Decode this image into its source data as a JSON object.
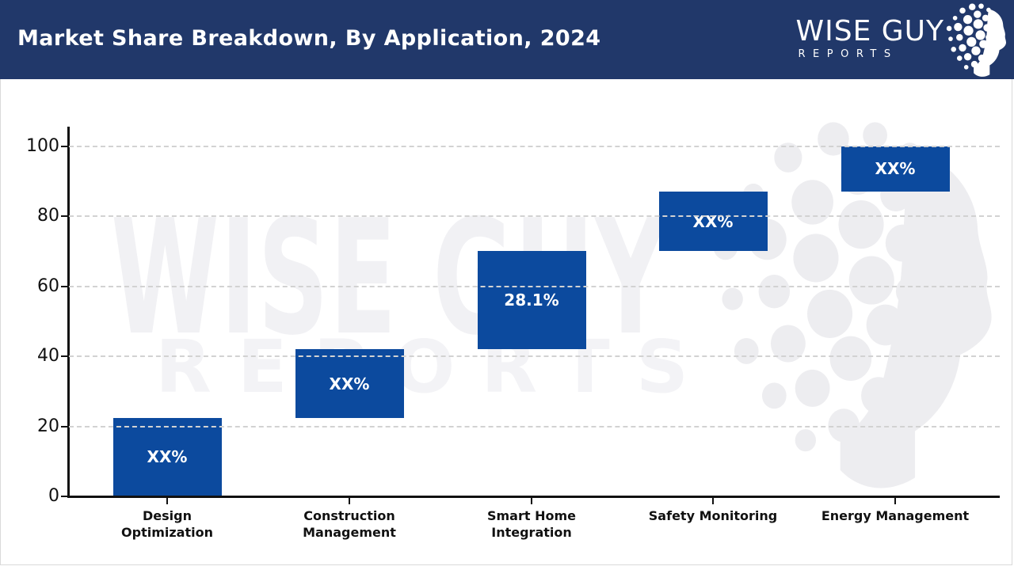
{
  "header": {
    "title": "Market Share Breakdown, By Application, 2024",
    "logo": {
      "name": "WISE GUY",
      "sub": "REPORTS"
    }
  },
  "watermark": {
    "name": "WISE GUY",
    "sub": "REPORTS"
  },
  "chart_data": {
    "type": "bar",
    "subtype": "floating-waterfall",
    "title": "Market Share Breakdown, By Application, 2024",
    "xlabel": "",
    "ylabel": "",
    "ylim": [
      0,
      105
    ],
    "yticks": [
      0,
      20,
      40,
      60,
      80,
      100
    ],
    "grid": "horizontal-dashed",
    "legend": "none",
    "bar_color": "#0c4a9e",
    "value_label_color": "#ffffff",
    "categories": [
      "Design Optimization",
      "Construction Management",
      "Smart Home Integration",
      "Safety Monitoring",
      "Energy Management"
    ],
    "bars": [
      {
        "category": "Design Optimization",
        "category_lines": [
          "Design",
          "Optimization"
        ],
        "start": 0,
        "end": 22.4,
        "value": 22.4,
        "label": "XX%"
      },
      {
        "category": "Construction Management",
        "category_lines": [
          "Construction",
          "Management"
        ],
        "start": 22.4,
        "end": 42.0,
        "value": 19.6,
        "label": "XX%"
      },
      {
        "category": "Smart Home Integration",
        "category_lines": [
          "Smart Home",
          "Integration"
        ],
        "start": 42.0,
        "end": 70.1,
        "value": 28.1,
        "label": "28.1%"
      },
      {
        "category": "Safety Monitoring",
        "category_lines": [
          "Safety Monitoring"
        ],
        "start": 70.1,
        "end": 87.0,
        "value": 16.9,
        "label": "XX%"
      },
      {
        "category": "Energy Management",
        "category_lines": [
          "Energy Management"
        ],
        "start": 87.0,
        "end": 100.0,
        "value": 13.0,
        "label": "XX%"
      }
    ]
  },
  "colors": {
    "header_bg": "#21386a",
    "bar": "#0c4a9e",
    "gridline": "#d2d2d2",
    "axis": "#111111",
    "watermark": "#f1f1f4",
    "card_border": "#d9d9d9"
  }
}
